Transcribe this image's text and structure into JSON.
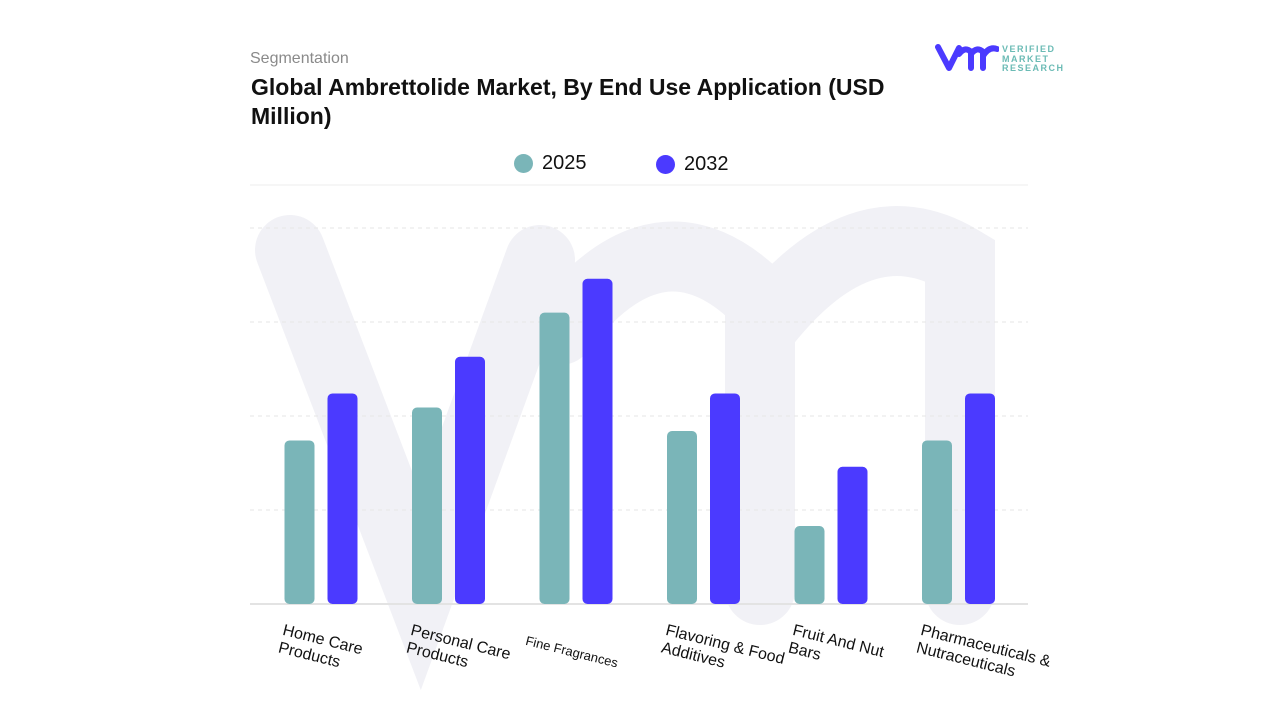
{
  "header": {
    "segment_label": "Segmentation",
    "title": "Global Ambrettolide Market, By End Use Application (USD Million)"
  },
  "logo": {
    "text_lines": [
      "VERIFIED",
      "MARKET",
      "RESEARCH"
    ],
    "brand_color": "#4b3aff",
    "text_color": "#6bbbb5"
  },
  "chart_data": {
    "type": "bar",
    "title": "Global Ambrettolide Market, By End Use Application (USD Million)",
    "xlabel": "",
    "ylabel": "",
    "categories": [
      "Home Care Products",
      "Personal Care Products",
      "Fine Fragrances",
      "Flavoring & Food Additives",
      "Fruit And Nut Bars",
      "Pharmaceuticals & Nutraceuticals"
    ],
    "series": [
      {
        "name": "2025",
        "color": "#7ab5b8",
        "values": [
          1.74,
          2.09,
          3.1,
          1.84,
          0.83,
          1.74
        ]
      },
      {
        "name": "2032",
        "color": "#4b3aff",
        "values": [
          2.24,
          2.63,
          3.46,
          2.24,
          1.46,
          2.24
        ]
      }
    ],
    "ylim": [
      0,
      4
    ],
    "y_tick_labels_shown": false,
    "grid": true,
    "legend_placement": "top-center"
  }
}
